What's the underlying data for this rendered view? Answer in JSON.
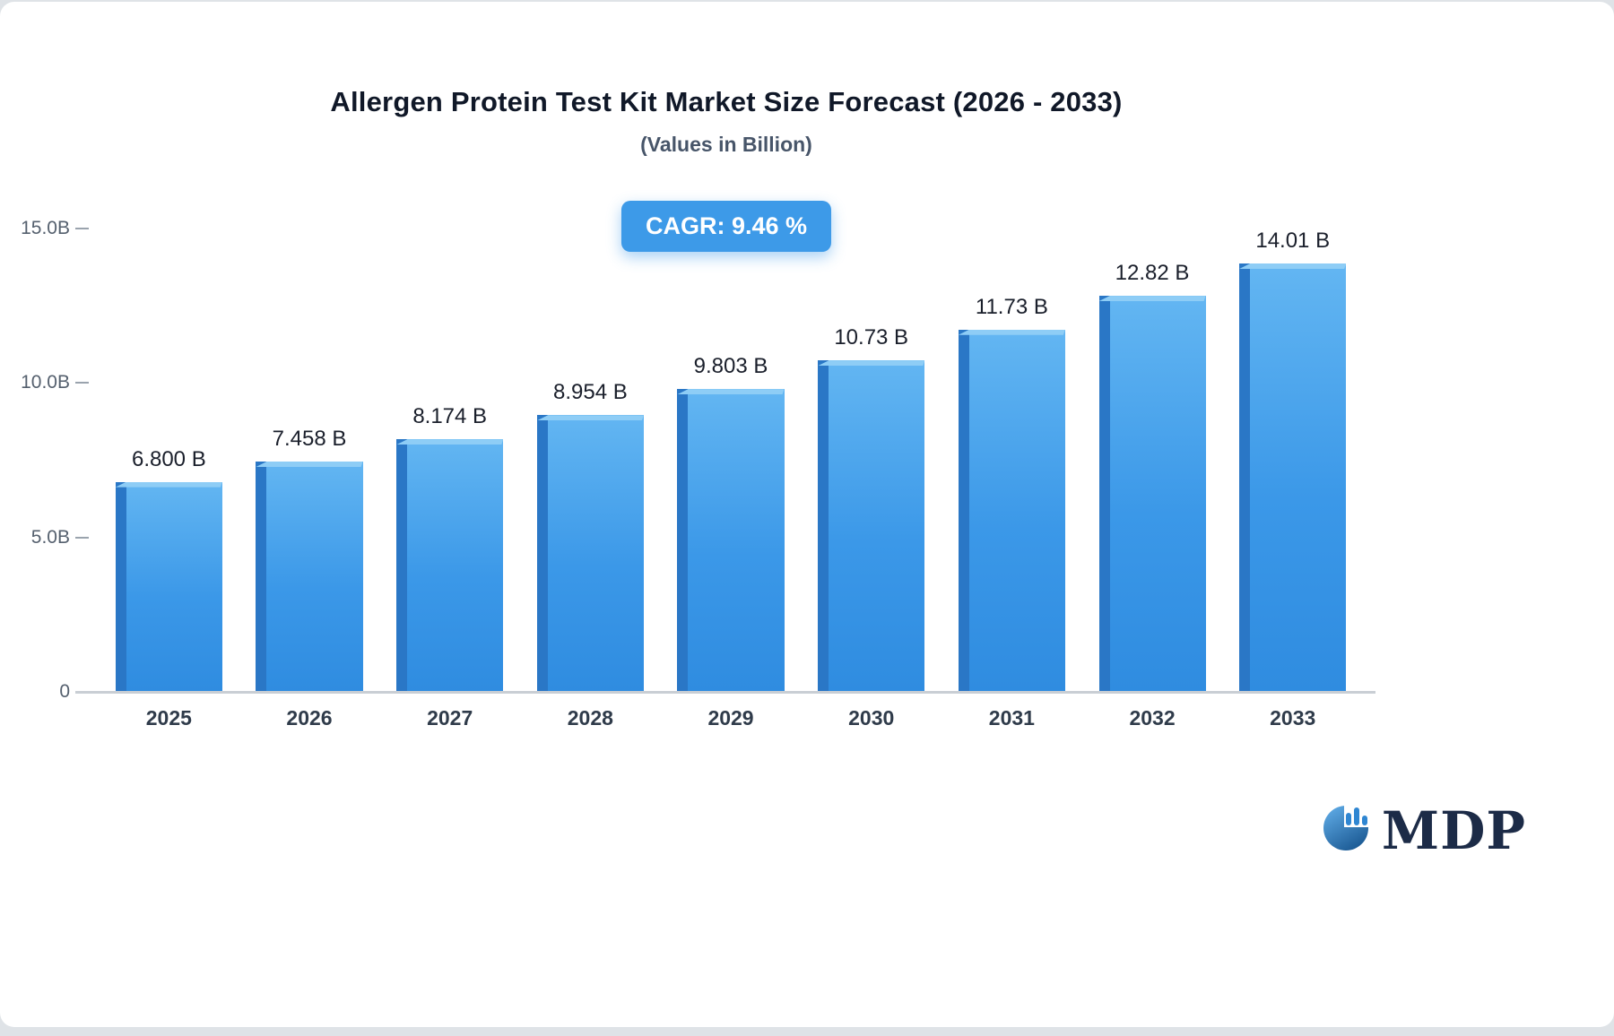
{
  "chart_data": {
    "type": "bar",
    "title": "Allergen Protein Test Kit Market Size Forecast (2026 - 2033)",
    "subtitle": "(Values in Billion)",
    "annotation": "CAGR: 9.46 %",
    "xlabel": "",
    "ylabel": "",
    "categories": [
      "2025",
      "2026",
      "2027",
      "2028",
      "2029",
      "2030",
      "2031",
      "2032",
      "2033"
    ],
    "values": [
      6.8,
      7.458,
      8.174,
      8.954,
      9.803,
      10.73,
      11.73,
      12.82,
      14.01
    ],
    "value_labels": [
      "6.800 B",
      "7.458 B",
      "8.174 B",
      "8.954 B",
      "9.803 B",
      "10.73 B",
      "11.73 B",
      "12.82 B",
      "14.01 B"
    ],
    "ylim": [
      0,
      15
    ],
    "yticks": [
      {
        "label": "15.0B",
        "value": 15
      },
      {
        "label": "10.0B",
        "value": 10
      },
      {
        "label": "5.0B",
        "value": 5
      },
      {
        "label": "0",
        "value": 0
      }
    ],
    "grid": false,
    "legend": false,
    "colors": {
      "bar_main": "#3b98e8",
      "bar_light": "#63b6f2",
      "bar_deep": "#2f8ce0",
      "bar_side": "#2a77c6",
      "bar_bevel": "#8ecdf6",
      "badge_bg": "#3d9ae8",
      "axis_line": "#c9ced4",
      "tick": "#9aa3ad",
      "title_text": "#101828",
      "subtitle_text": "#475569",
      "label_text": "#1a1f2b",
      "year_text": "#2f3b4a",
      "ytick_text": "#55606e",
      "logo_text": "#1c2b47"
    }
  },
  "logo": {
    "text": "MDP"
  }
}
